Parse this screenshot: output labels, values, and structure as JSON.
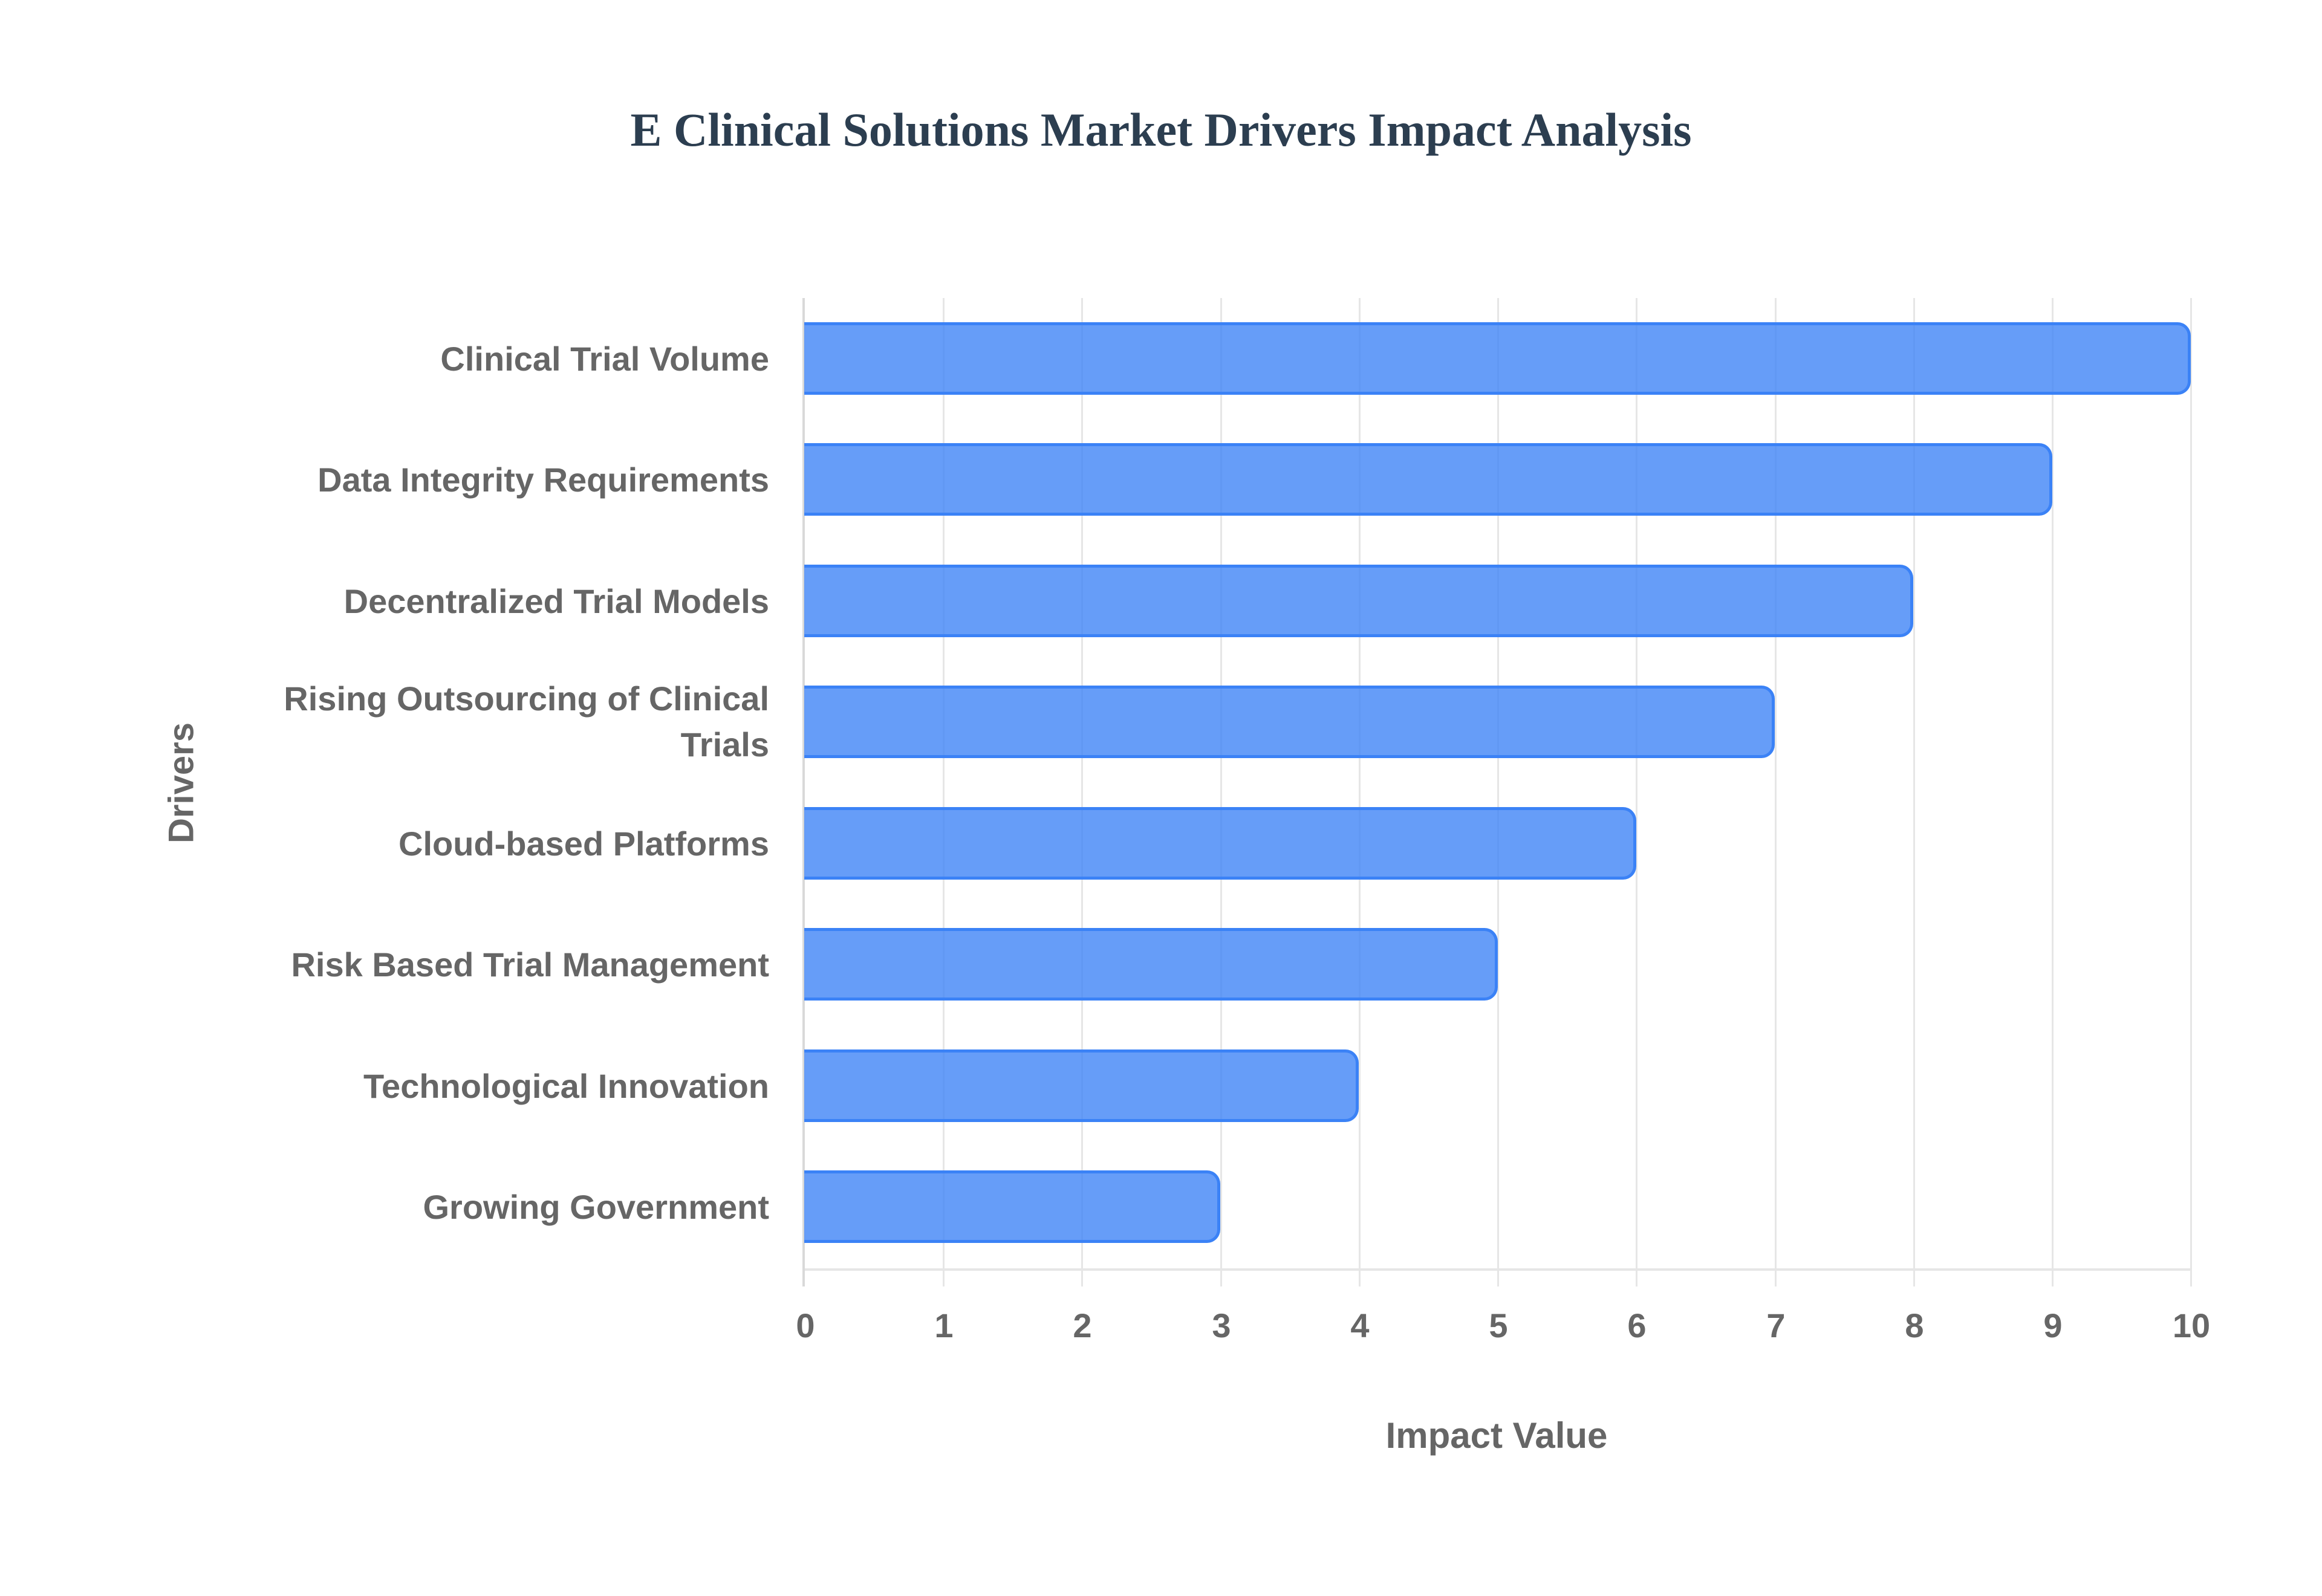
{
  "chart_data": {
    "type": "bar",
    "orientation": "horizontal",
    "title": "E Clinical Solutions Market Drivers Impact Analysis",
    "xlabel": "Impact Value",
    "ylabel": "Drivers",
    "xlim": [
      0,
      10
    ],
    "xticks": [
      "0",
      "1",
      "2",
      "3",
      "4",
      "5",
      "6",
      "7",
      "8",
      "9",
      "10"
    ],
    "grid": true,
    "legend": null,
    "categories": [
      "Clinical Trial Volume",
      "Data Integrity Requirements",
      "Decentralized Trial Models",
      "Rising Outsourcing of Clinical Trials",
      "Cloud-based Platforms",
      "Risk Based Trial Management",
      "Technological Innovation",
      "Growing Government"
    ],
    "values": [
      10,
      9,
      8,
      7,
      6,
      5,
      4,
      3
    ],
    "colors": {
      "bar_fill": "#6199f4",
      "bar_border": "#3b82f6",
      "title": "#2c3e50",
      "labels": "#666666",
      "grid": "#e6e6e6"
    }
  },
  "labels": {
    "y0": "Clinical Trial Volume",
    "y1": "Data Integrity Requirements",
    "y2": "Decentralized Trial Models",
    "y3a": "Rising Outsourcing of Clinical",
    "y3b": "Trials",
    "y4": "Cloud-based Platforms",
    "y5": "Risk Based Trial Management",
    "y6": "Technological Innovation",
    "y7": "Growing Government"
  }
}
